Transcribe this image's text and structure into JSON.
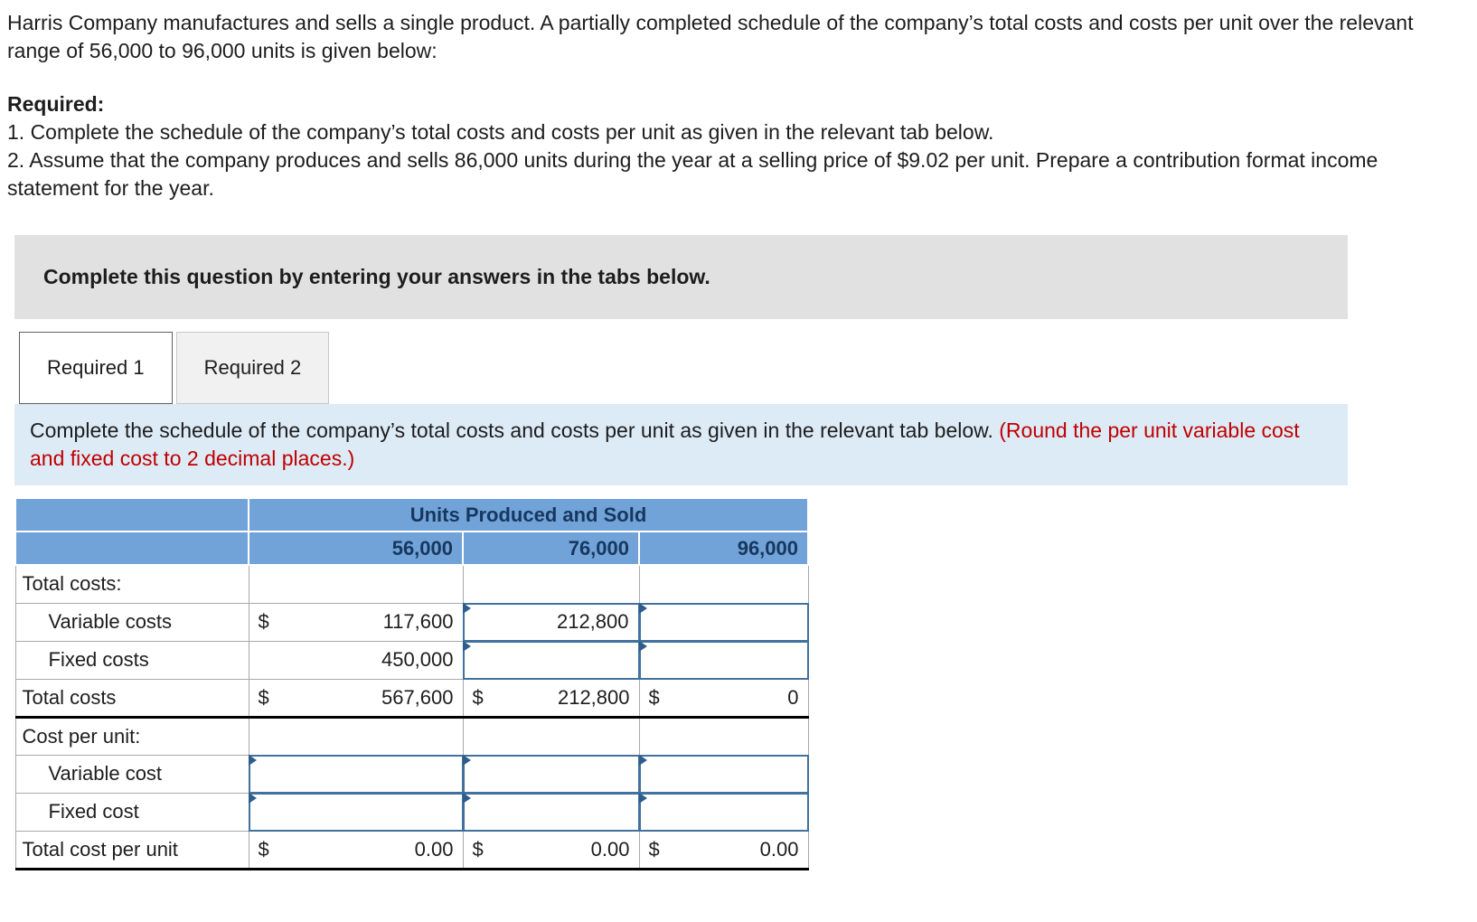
{
  "problem": {
    "intro": "Harris Company manufactures and sells a single product. A partially completed schedule of the company’s total costs and costs per unit over the relevant range of 56,000 to 96,000 units is given below:",
    "required_label": "Required:",
    "required_items": [
      "1. Complete the schedule of the company’s total costs and costs per unit as given in the relevant tab below.",
      "2. Assume that the company produces and sells 86,000 units during the year at a selling price of $9.02 per unit. Prepare a contribution format income statement for the year."
    ]
  },
  "banner": {
    "text": "Complete this question by entering your answers in the tabs below."
  },
  "tabs": [
    {
      "label": "Required 1",
      "active": true
    },
    {
      "label": "Required 2",
      "active": false
    }
  ],
  "instruction": {
    "text": "Complete the schedule of the company’s total costs and costs per unit as given in the relevant tab below.",
    "note": "(Round the per unit variable cost and fixed cost to 2 decimal places.)"
  },
  "table": {
    "header_title": "Units Produced and Sold",
    "columns": [
      "56,000",
      "76,000",
      "96,000"
    ],
    "rows": [
      {
        "label": "Total costs:",
        "indent": false,
        "total": false,
        "cells": [
          {
            "type": "blank"
          },
          {
            "type": "blank"
          },
          {
            "type": "blank"
          }
        ]
      },
      {
        "label": "Variable costs",
        "indent": true,
        "total": false,
        "cells": [
          {
            "type": "static",
            "prefix": "$",
            "value": "117,600"
          },
          {
            "type": "input",
            "value": "212,800"
          },
          {
            "type": "input",
            "value": ""
          }
        ]
      },
      {
        "label": "Fixed costs",
        "indent": true,
        "total": false,
        "cells": [
          {
            "type": "static",
            "prefix": "",
            "value": "450,000"
          },
          {
            "type": "input",
            "value": ""
          },
          {
            "type": "input",
            "value": ""
          }
        ]
      },
      {
        "label": "Total costs",
        "indent": false,
        "total": true,
        "cells": [
          {
            "type": "static",
            "prefix": "$",
            "value": "567,600"
          },
          {
            "type": "static",
            "prefix": "$",
            "value": "212,800"
          },
          {
            "type": "static",
            "prefix": "$",
            "value": "0"
          }
        ]
      },
      {
        "label": "Cost per unit:",
        "indent": false,
        "total": false,
        "cells": [
          {
            "type": "blank"
          },
          {
            "type": "blank"
          },
          {
            "type": "blank"
          }
        ]
      },
      {
        "label": "Variable cost",
        "indent": true,
        "total": false,
        "cells": [
          {
            "type": "input",
            "value": ""
          },
          {
            "type": "input",
            "value": ""
          },
          {
            "type": "input",
            "value": ""
          }
        ]
      },
      {
        "label": "Fixed cost",
        "indent": true,
        "total": false,
        "cells": [
          {
            "type": "input",
            "value": ""
          },
          {
            "type": "input",
            "value": ""
          },
          {
            "type": "input",
            "value": ""
          }
        ]
      },
      {
        "label": "Total cost per unit",
        "indent": false,
        "total": true,
        "cells": [
          {
            "type": "static",
            "prefix": "$",
            "value": "0.00"
          },
          {
            "type": "static",
            "prefix": "$",
            "value": "0.00"
          },
          {
            "type": "static",
            "prefix": "$",
            "value": "0.00"
          }
        ]
      }
    ]
  },
  "colors": {
    "header-blue": "#71a3d9",
    "header-text": "#17375e",
    "banner-gray": "#e1e1e1",
    "instruction-bg": "#ddebf7",
    "note-red": "#c00000",
    "input-border": "#41719c",
    "marker-blue": "#2e5d8c",
    "grid-gray": "#a9a9a9"
  }
}
